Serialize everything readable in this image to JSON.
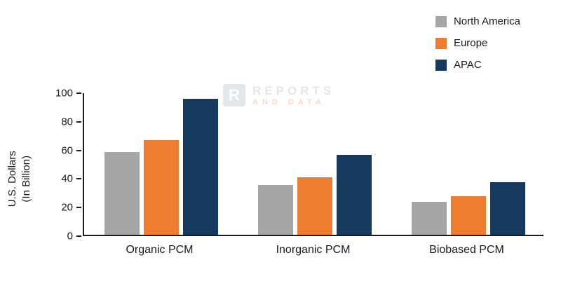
{
  "chart_data": {
    "type": "bar",
    "categories": [
      "Organic PCM",
      "Inorganic PCM",
      "Biobased PCM"
    ],
    "series": [
      {
        "name": "North America",
        "color": "#a6a6a6",
        "values": [
          58,
          35,
          23
        ]
      },
      {
        "name": "Europe",
        "color": "#ee7d2f",
        "values": [
          66,
          40,
          27
        ]
      },
      {
        "name": "APAC",
        "color": "#16395e",
        "values": [
          95,
          56,
          37
        ]
      }
    ],
    "title": "",
    "xlabel": "",
    "ylabel_line1": "U.S. Dollars",
    "ylabel_line2": "(In Billion)",
    "yticks": [
      0,
      20,
      40,
      60,
      80,
      100
    ],
    "ylim": [
      0,
      100
    ],
    "grid": false,
    "legend_position": "top-right"
  },
  "watermark": {
    "logo_letter": "R",
    "line1": "REPORTS",
    "line2": "AND DATA"
  }
}
